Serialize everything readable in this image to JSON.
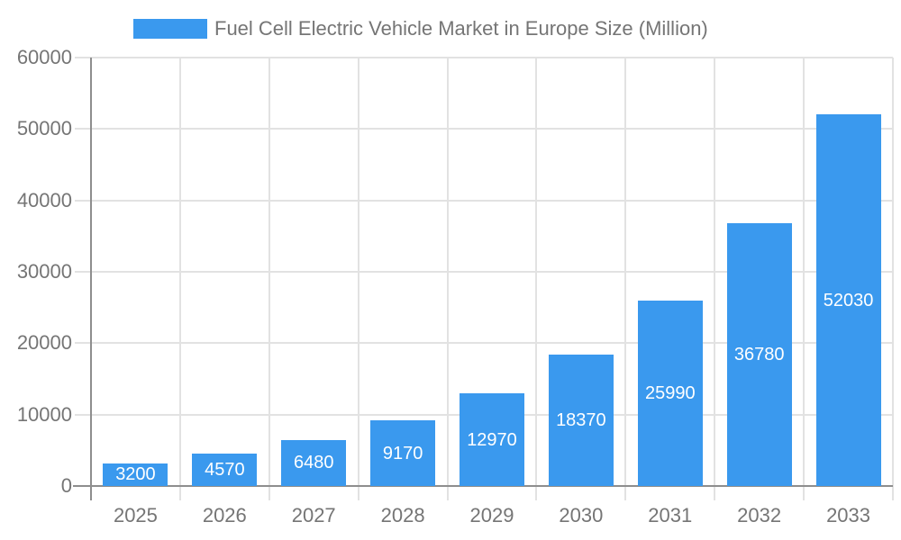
{
  "legend": {
    "swatch_color": "#3A99EE"
  },
  "chart_data": {
    "type": "bar",
    "title": "Fuel Cell Electric Vehicle Market in Europe Size (Million)",
    "categories": [
      "2025",
      "2026",
      "2027",
      "2028",
      "2029",
      "2030",
      "2031",
      "2032",
      "2033"
    ],
    "values": [
      3200,
      4570,
      6480,
      9170,
      12970,
      18370,
      25990,
      36780,
      52030
    ],
    "xlabel": "",
    "ylabel": "",
    "ylim": [
      0,
      60000
    ],
    "y_ticks": [
      0,
      10000,
      20000,
      30000,
      40000,
      50000,
      60000
    ],
    "grid": true,
    "legend_position": "top",
    "bar_color": "#3A99EE",
    "bar_label_color": "#ffffff",
    "axis_text_color": "#757575",
    "title_text_color": "#757575",
    "axis_line_color": "#8e8e8e",
    "grid_line_color": "#e2e2e2"
  }
}
